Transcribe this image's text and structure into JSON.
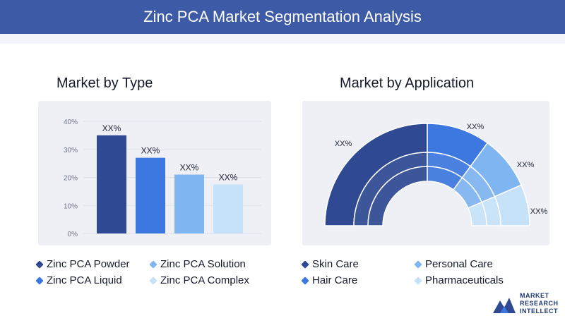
{
  "header": {
    "title": "Zinc PCA Market Segmentation Analysis"
  },
  "colors": {
    "banner": "#3d5aa6",
    "darkBlue": "#2f4a93",
    "midBlue": "#3d78e0",
    "lightBlue": "#7fb5f0",
    "paleBlue": "#c6e2f9"
  },
  "chart_data": [
    {
      "type": "bar",
      "title": "Market by Type",
      "categories": [
        "Zinc PCA Powder",
        "Zinc PCA Liquid",
        "Zinc PCA Solution",
        "Zinc PCA Complex"
      ],
      "values": [
        35,
        27,
        21,
        17.5
      ],
      "data_labels": [
        "XX%",
        "XX%",
        "XX%",
        "XX%"
      ],
      "yticks": [
        "0%",
        "10%",
        "20%",
        "30%",
        "40%"
      ],
      "ylim": [
        0,
        40
      ],
      "colors": [
        "#2f4a93",
        "#3d78e0",
        "#7fb5f0",
        "#c6e2f9"
      ],
      "grid": true,
      "legend": [
        "Zinc PCA Powder",
        "Zinc PCA Solution",
        "Zinc PCA Liquid",
        "Zinc PCA Complex"
      ]
    },
    {
      "type": "pie",
      "subtype": "half-donut",
      "title": "Market by Application",
      "categories": [
        "Skin Care",
        "Hair Care",
        "Personal Care",
        "Pharmaceuticals"
      ],
      "values": [
        50,
        20,
        17,
        13
      ],
      "data_labels": [
        "XX%",
        "XX%",
        "XX%",
        "XX%"
      ],
      "colors": [
        "#2f4a93",
        "#3d78e0",
        "#7fb5f0",
        "#c6e2f9"
      ],
      "legend": [
        "Skin Care",
        "Personal Care",
        "Hair Care",
        "Pharmaceuticals"
      ]
    }
  ],
  "legend_left": [
    {
      "label": "Zinc PCA Powder",
      "color": "#2f4a93"
    },
    {
      "label": "Zinc PCA Solution",
      "color": "#7fb5f0"
    },
    {
      "label": "Zinc PCA Liquid",
      "color": "#3d78e0"
    },
    {
      "label": "Zinc PCA Complex",
      "color": "#c6e2f9"
    }
  ],
  "legend_right": [
    {
      "label": "Skin Care",
      "color": "#2f4a93"
    },
    {
      "label": "Personal Care",
      "color": "#7fb5f0"
    },
    {
      "label": "Hair Care",
      "color": "#3d78e0"
    },
    {
      "label": "Pharmaceuticals",
      "color": "#c6e2f9"
    }
  ],
  "logo": {
    "line1": "MARKET",
    "line2": "RESEARCH",
    "line3": "INTELLECT"
  }
}
